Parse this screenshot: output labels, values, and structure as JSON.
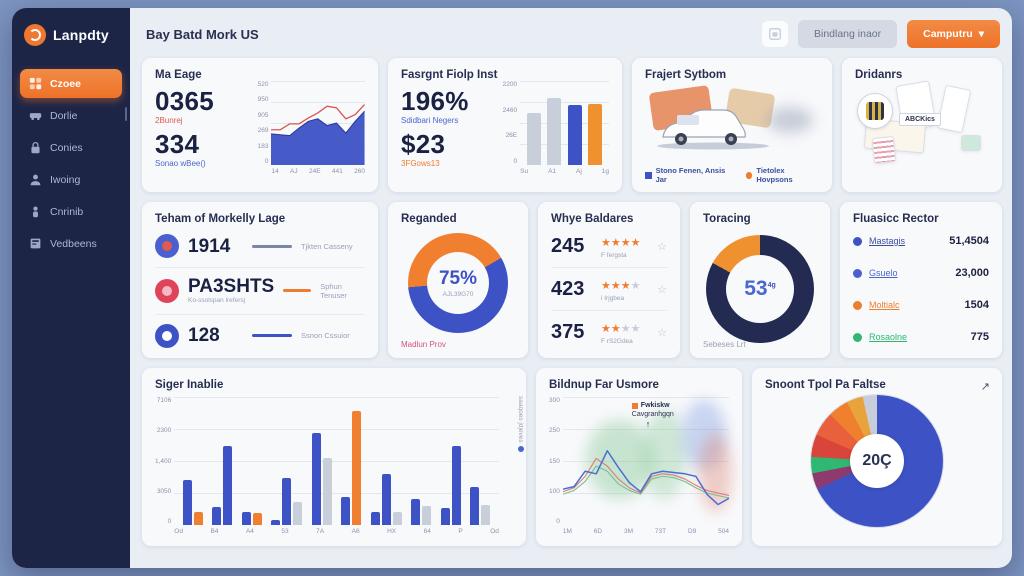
{
  "sidebar": {
    "logo": "Lanpdty",
    "items": [
      {
        "label": "Czoee",
        "icon": "dashboard-icon",
        "active": true
      },
      {
        "label": "Dorlie",
        "icon": "car-icon",
        "active": false
      },
      {
        "label": "Conies",
        "icon": "lock-icon",
        "active": false
      },
      {
        "label": "Iwoing",
        "icon": "person-icon",
        "active": false
      },
      {
        "label": "Cnrinib",
        "icon": "user-icon",
        "active": false
      },
      {
        "label": "Vedbeens",
        "icon": "book-icon",
        "active": false
      }
    ]
  },
  "header": {
    "title": "Bay Batd Mork US",
    "secondary_button": "Bindlang inaor",
    "primary_button": "Camputru",
    "caret": "▾"
  },
  "cards": {
    "ma_eage": {
      "title": "Ma Eage",
      "stat1": "0365",
      "stat1_label": "2Bunrej",
      "stat2": "334",
      "stat2_label": "Sonao wBee()"
    },
    "fasrgnt": {
      "title": "Fasrgnt Fiolp Inst",
      "stat1": "196%",
      "stat1_label": "Sdidbari Negers",
      "stat2": "$23",
      "stat2_label": "3FGows13"
    },
    "frajert": {
      "title": "Frajert Sytbom",
      "legend1": "Stono Fenen, Ansis Jar",
      "legend2": "Tietolex Hovpsons"
    },
    "dridanrs": {
      "title": "Dridanrs",
      "doc_label": "ABCKics"
    },
    "teham": {
      "title": "Teham of Morkelly Lage",
      "rows": [
        {
          "value": "1914",
          "sub": "",
          "swatch_label": "Tjkten Casseny",
          "swatch_color": "#7b87a8",
          "icon_bg": "#4a5fd0",
          "icon_inner": "#e05a4e"
        },
        {
          "value": "PA3SHTS",
          "sub": "Ko-ssolspan lrefersj",
          "swatch_label": "Sphun Tenuser",
          "swatch_color": "#ef7d2f",
          "icon_bg": "#e0445a",
          "icon_inner": "#f6b8c4"
        },
        {
          "value": "128",
          "sub": "",
          "swatch_label": "Ssnon Cssuior",
          "swatch_color": "#3d52c5",
          "icon_bg": "#3d52c5",
          "icon_inner": "#ffffff"
        }
      ]
    },
    "reganded": {
      "title": "Reganded",
      "footer": "Madlun Prov"
    },
    "whye": {
      "title": "Whye Baldares",
      "rows": [
        {
          "value": "245",
          "stars_on": "★★★★",
          "stars_off": "",
          "label": "F fergsta",
          "ghost": "☆"
        },
        {
          "value": "423",
          "stars_on": "★★★",
          "stars_off": "★",
          "label": "i Irjgbea",
          "ghost": "☆"
        },
        {
          "value": "375",
          "stars_on": "★★",
          "stars_off": "★★",
          "label": "F rS2Gdea",
          "ghost": "☆"
        }
      ]
    },
    "toracing": {
      "title": "Toracing",
      "footer": "Sebeses Lrt"
    },
    "fluasicc": {
      "title": "Fluasicc Rector",
      "rows": [
        {
          "dot": "#3d52c5",
          "label": "Mastagis",
          "label_color": "#3b4f9e",
          "value": "51,4504"
        },
        {
          "dot": "#4a5fd0",
          "label": "Gsuelo",
          "label_color": "#4a66d0",
          "value": "23,000"
        },
        {
          "dot": "#ef7d2f",
          "label": "Moltialc",
          "label_color": "#ef7d2f",
          "value": "1504"
        },
        {
          "dot": "#2eb872",
          "label": "Rosaolne",
          "label_color": "#2eb872",
          "value": "775"
        }
      ]
    },
    "siger": {
      "title": "Siger Inablie",
      "side_legend": "saaqoes jdjeves"
    },
    "bildnup": {
      "title": "Bildnup Far Usmore",
      "annotation1": "Fwkiskw",
      "annotation2": "Cavgranhgqn",
      "annotation_arrow": "↑"
    },
    "snont": {
      "title": "Snoont Tpol Pa Faltse",
      "expand": "↗"
    }
  },
  "chart_data": [
    {
      "id": "area-ma-eage",
      "type": "area",
      "x": [
        "14",
        "AJ",
        "24E",
        "441",
        "260"
      ],
      "yticks": [
        "520",
        "950",
        "905",
        "269",
        "183",
        "0"
      ],
      "series": [
        {
          "name": "volume-area",
          "color": "#3d52c5",
          "values": [
            37,
            36,
            35,
            44,
            52,
            55,
            47,
            50,
            38,
            52,
            64
          ]
        },
        {
          "name": "trend-line",
          "color": "#d9534f",
          "values": [
            42,
            42,
            49,
            49,
            56,
            62,
            70,
            68,
            55,
            60,
            72
          ]
        }
      ]
    },
    {
      "id": "bar-fasrgnt",
      "type": "bar",
      "categories": [
        "Su",
        "A1",
        "Aj",
        "1g"
      ],
      "yticks": [
        "2200",
        "2460",
        "26E",
        "0"
      ],
      "values": [
        62,
        80,
        72,
        73
      ],
      "colors": [
        "#c9cedb",
        "#c9cedb",
        "#3d52c5",
        "#f0912f"
      ]
    },
    {
      "id": "donut-reganded",
      "type": "donut",
      "start": 265,
      "center": "75%",
      "sub": "AJL39G70",
      "segments": [
        {
          "name": "orange-share",
          "color": "#f0802f",
          "value": 43
        },
        {
          "name": "blue-share",
          "color": "#3d52c5",
          "value": 57
        }
      ]
    },
    {
      "id": "donut-toracing",
      "type": "donut",
      "start": 0,
      "center": "53",
      "sup": "4g",
      "segments": [
        {
          "name": "navy-share",
          "color": "#232b52",
          "value": 83
        },
        {
          "name": "orange-share",
          "color": "#f0912f",
          "value": 17
        }
      ]
    },
    {
      "id": "grouped-bar-siger",
      "type": "bar",
      "yticks": [
        "7106",
        "2300",
        "1,400",
        "3050",
        "0"
      ],
      "categories": [
        "Od",
        "B4",
        "A4",
        "53",
        "7A",
        "A6",
        "HX",
        "64",
        "P",
        "Od"
      ],
      "palette": {
        "blue": "#3d52c5",
        "orange": "#f0802f",
        "gray": "#c9cedb"
      },
      "groups": [
        [
          {
            "c": "blue",
            "v": 35
          },
          {
            "c": "orange",
            "v": 10
          }
        ],
        [
          {
            "c": "blue",
            "v": 14
          },
          {
            "c": "blue",
            "v": 62
          }
        ],
        [
          {
            "c": "blue",
            "v": 10
          },
          {
            "c": "orange",
            "v": 9
          }
        ],
        [
          {
            "c": "blue",
            "v": 4
          },
          {
            "c": "blue",
            "v": 37
          },
          {
            "c": "gray",
            "v": 18
          }
        ],
        [
          {
            "c": "blue",
            "v": 72
          },
          {
            "c": "gray",
            "v": 52
          }
        ],
        [
          {
            "c": "blue",
            "v": 22
          },
          {
            "c": "orange",
            "v": 89
          }
        ],
        [
          {
            "c": "blue",
            "v": 10
          },
          {
            "c": "blue",
            "v": 40
          },
          {
            "c": "gray",
            "v": 10
          }
        ],
        [
          {
            "c": "blue",
            "v": 20
          },
          {
            "c": "gray",
            "v": 15
          }
        ],
        [
          {
            "c": "blue",
            "v": 13
          },
          {
            "c": "blue",
            "v": 62
          }
        ],
        [
          {
            "c": "blue",
            "v": 30
          },
          {
            "c": "gray",
            "v": 16
          }
        ]
      ]
    },
    {
      "id": "line-bildnup",
      "type": "line",
      "x": [
        "1M",
        "6D",
        "3M",
        "73T",
        "D9",
        "504"
      ],
      "yticks": [
        "300",
        "250",
        "150",
        "100",
        "0"
      ],
      "series": [
        {
          "name": "blue-line",
          "color": "#4a6fd4",
          "values": [
            28,
            30,
            42,
            40,
            58,
            45,
            33,
            26,
            40,
            42,
            41,
            40,
            38,
            24,
            16,
            21
          ]
        },
        {
          "name": "red-line",
          "color": "#e07a7a",
          "values": [
            26,
            29,
            38,
            52,
            46,
            36,
            29,
            25,
            38,
            40,
            39,
            36,
            31,
            27,
            25,
            23
          ]
        },
        {
          "name": "green-line",
          "color": "#7bbf8e",
          "values": [
            24,
            27,
            34,
            46,
            42,
            32,
            27,
            24,
            36,
            38,
            37,
            34,
            29,
            25,
            23,
            21
          ]
        }
      ]
    },
    {
      "id": "pie-snont",
      "type": "pie",
      "start": 0,
      "center": "20Ç",
      "segments": [
        {
          "name": "blue",
          "color": "#3d52c5",
          "value": 68
        },
        {
          "name": "purple",
          "color": "#8e3a6e",
          "value": 4
        },
        {
          "name": "green",
          "color": "#2eb872",
          "value": 4
        },
        {
          "name": "red",
          "color": "#d9453a",
          "value": 5.5
        },
        {
          "name": "red-orange",
          "color": "#e8603c",
          "value": 6
        },
        {
          "name": "orange",
          "color": "#f0802f",
          "value": 5
        },
        {
          "name": "yellow",
          "color": "#e8a33d",
          "value": 4
        },
        {
          "name": "gray",
          "color": "#c7cdda",
          "value": 3.5
        }
      ]
    }
  ]
}
